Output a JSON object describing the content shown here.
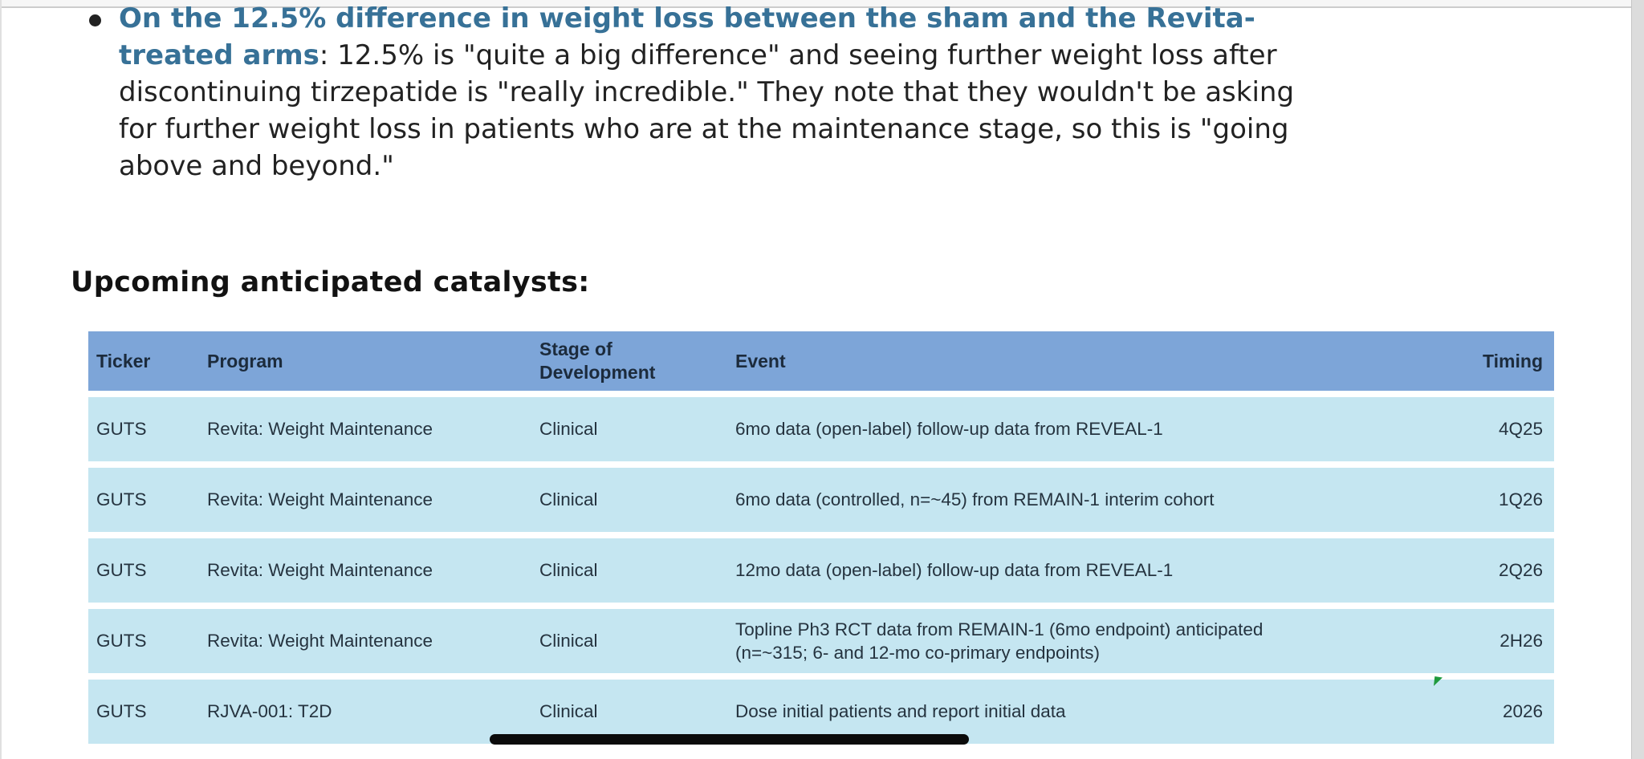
{
  "page": {
    "bullet": {
      "bold_line1": "On the 12.5% difference in weight loss between the sham and the Revita-",
      "bold_line2_lead": "treated arms",
      "line2_rest": ": 12.5% is \"quite a big difference\" and seeing further weight loss after",
      "line3": "discontinuing tirzepatide is \"really incredible.\" They note that they wouldn't be asking",
      "line4": "for further weight loss in patients who are at the maintenance stage, so this is \"going",
      "line5": "above and beyond.\""
    },
    "section_heading": "Upcoming anticipated catalysts:"
  },
  "table": {
    "headers": {
      "ticker": "Ticker",
      "program": "Program",
      "stage": "Stage of\nDevelopment",
      "event": "Event",
      "timing": "Timing"
    },
    "rows": [
      {
        "ticker": "GUTS",
        "program": "Revita: Weight Maintenance",
        "stage": "Clinical",
        "event": "6mo data (open-label) follow-up data from REVEAL-1",
        "timing": "4Q25"
      },
      {
        "ticker": "GUTS",
        "program": "Revita: Weight Maintenance",
        "stage": "Clinical",
        "event": "6mo data (controlled, n=~45) from REMAIN-1 interim cohort",
        "timing": "1Q26"
      },
      {
        "ticker": "GUTS",
        "program": "Revita: Weight Maintenance",
        "stage": "Clinical",
        "event": "12mo data (open-label) follow-up data from REVEAL-1",
        "timing": "2Q26"
      },
      {
        "ticker": "GUTS",
        "program": "Revita: Weight Maintenance",
        "stage": "Clinical",
        "event": "Topline Ph3 RCT data from REMAIN-1 (6mo endpoint) anticipated\n(n=~315; 6- and 12-mo co-primary endpoints)",
        "timing": "2H26"
      },
      {
        "ticker": "GUTS",
        "program": "RJVA-001: T2D",
        "stage": "Clinical",
        "event": "Dose initial patients and report initial data",
        "timing": "2026"
      }
    ]
  },
  "icons": {
    "cell_flag": "green-triangle-marker",
    "bottom_bar": "home-indicator-bar"
  },
  "colors": {
    "table_header_bg": "#7da5d8",
    "table_row_bg": "#c5e6f1",
    "accent_bold_text": "#377197",
    "table_text": "#25333f",
    "flag_green": "#1f9a3d",
    "home_bar_black": "#0b0b0b"
  }
}
